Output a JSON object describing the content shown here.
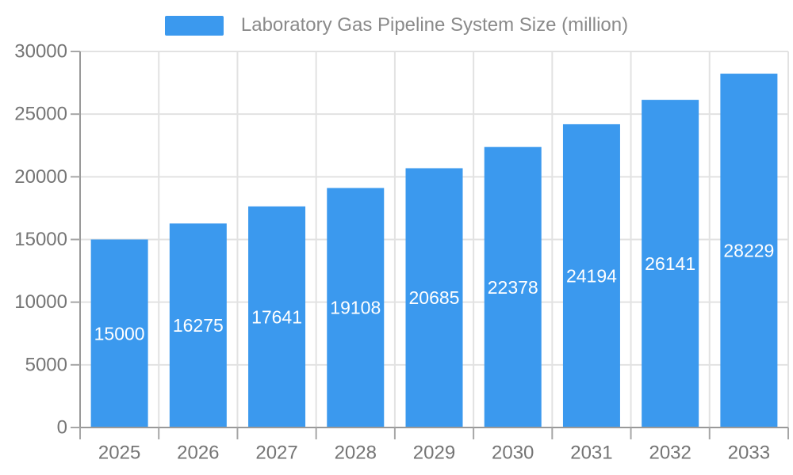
{
  "chart_data": {
    "type": "bar",
    "title": "Laboratory Gas Pipeline System Size (million)",
    "categories": [
      "2025",
      "2026",
      "2027",
      "2028",
      "2029",
      "2030",
      "2031",
      "2032",
      "2033"
    ],
    "values": [
      15000,
      16275,
      17641,
      19108,
      20685,
      22378,
      24194,
      26141,
      28229
    ],
    "xlabel": "",
    "ylabel": "",
    "ylim": [
      0,
      30000
    ],
    "yticks": [
      0,
      5000,
      10000,
      15000,
      20000,
      25000,
      30000
    ],
    "legend_position": "top-center",
    "grid": "on",
    "bar_label_position": "inside-center",
    "colors": {
      "bar": "#3B99EE",
      "bar_label": "#FFFFFF",
      "axis_line": "#999999",
      "tick_line": "#A6A6A6",
      "axis_text": "#757575",
      "legend_text": "#8A8A8A",
      "grid_line": "#E2E2E2"
    }
  }
}
